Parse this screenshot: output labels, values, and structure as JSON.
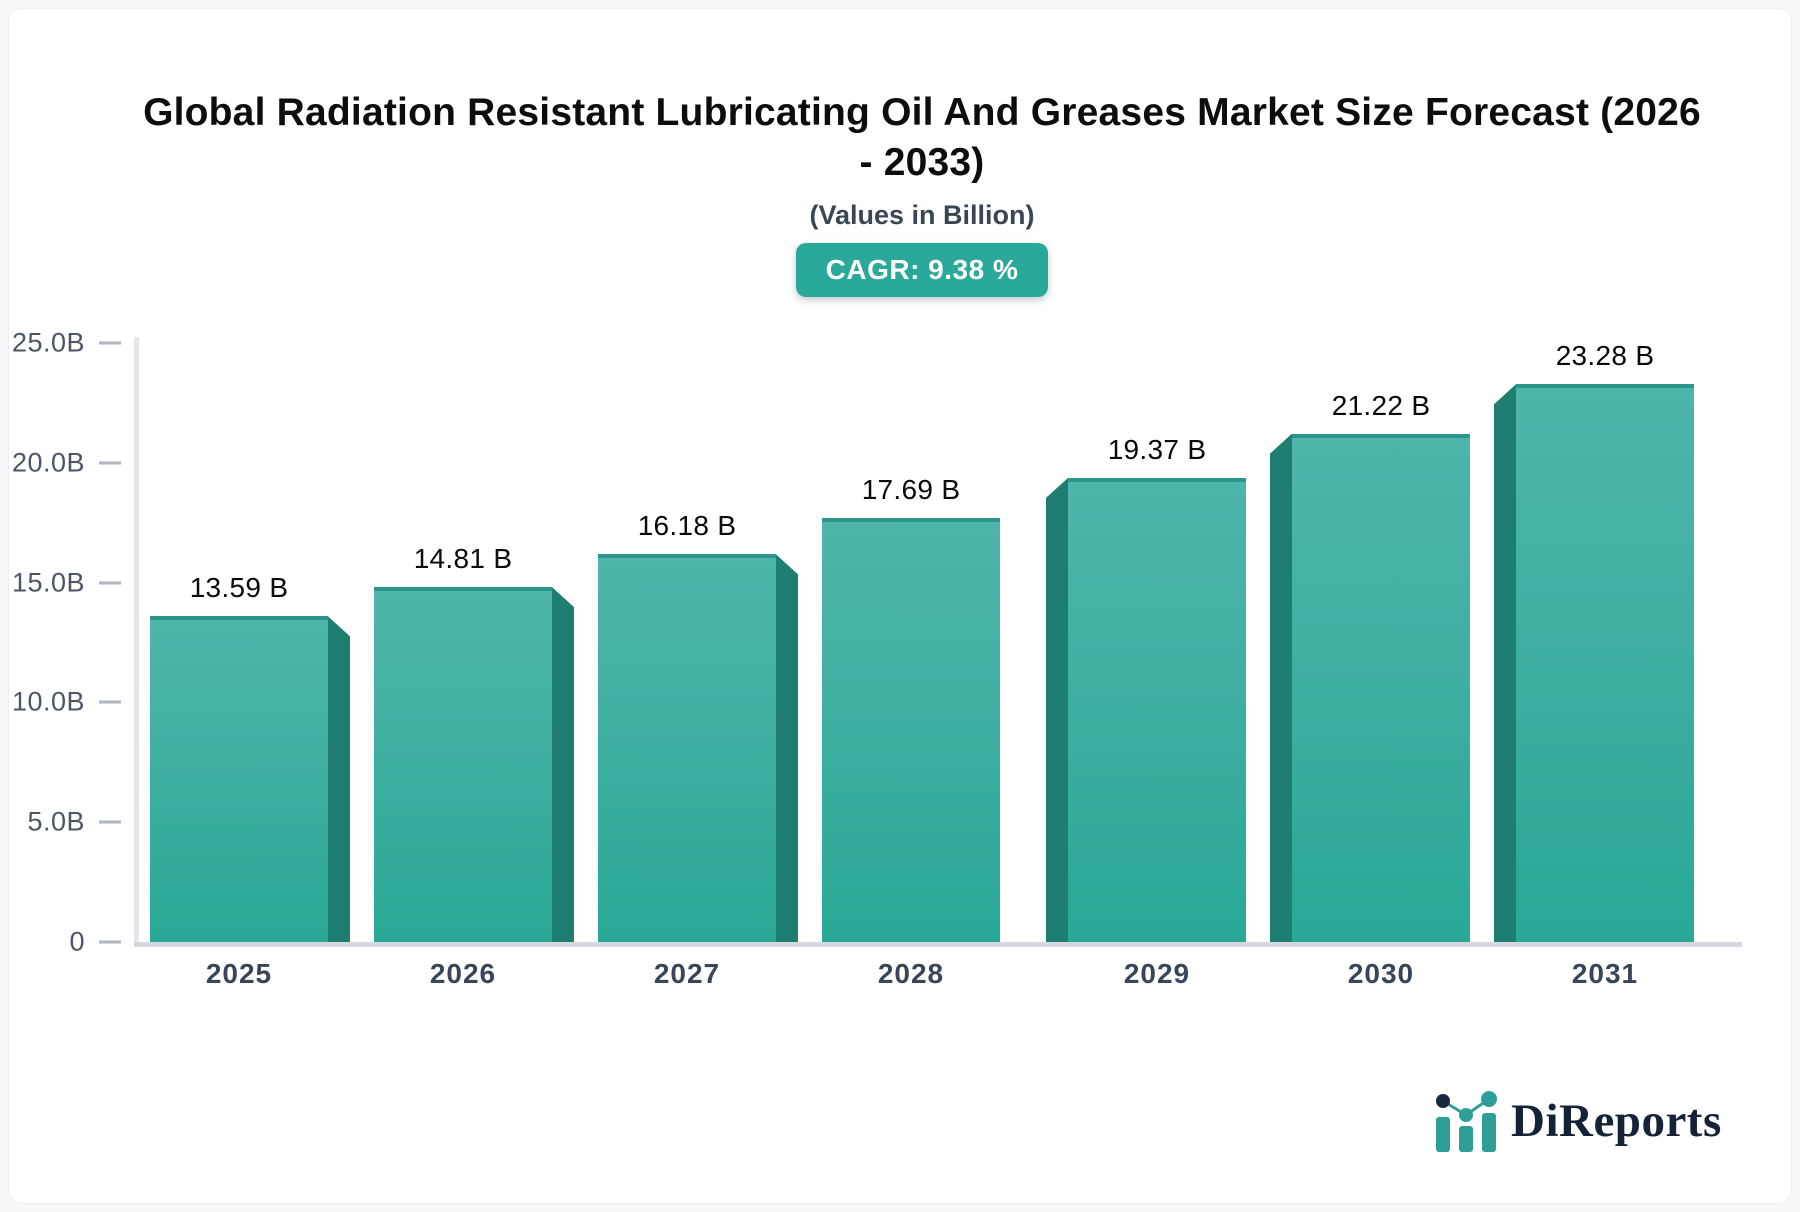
{
  "page": {
    "background": "#f7f8f9",
    "card_background": "#ffffff",
    "accent": "#2aa99b"
  },
  "header": {
    "title_line1": "Global Radiation Resistant Lubricating Oil And Greases Market Size Forecast (2026",
    "title_line2": "- 2033)",
    "subtitle": "(Values in Billion)",
    "cagr_badge": "CAGR: 9.38 %"
  },
  "chart_data": {
    "type": "bar",
    "title": "Global Radiation Resistant Lubricating Oil And Greases Market Size Forecast (2026 - 2033)",
    "subtitle": "(Values in Billion)",
    "cagr_percent": 9.38,
    "categories": [
      "2025",
      "2026",
      "2027",
      "2028",
      "2029",
      "2030",
      "2031"
    ],
    "values": [
      13.59,
      14.81,
      16.18,
      17.69,
      19.37,
      21.22,
      23.28
    ],
    "value_labels": [
      "13.59 B",
      "14.81 B",
      "16.18 B",
      "17.69 B",
      "19.37 B",
      "21.22 B",
      "23.28 B"
    ],
    "y_ticks": [
      "25.0B",
      "20.0B",
      "15.0B",
      "10.0B",
      "5.0B",
      "0"
    ],
    "ylim": [
      0,
      25
    ],
    "unit": "Billion",
    "xlabel": "",
    "ylabel": "",
    "grid": "off",
    "legend": "none",
    "bar_colors": {
      "face_top": "#4fb5ab",
      "face_bottom": "#2aa897",
      "side": "#1e7e71",
      "top_edge": "#2d968c"
    }
  },
  "branding": {
    "logo_text": "DiReports",
    "logo_icon": "mini-bar-chart-icon",
    "logo_text_color": "#152238",
    "logo_icon_color": "#2f9e97",
    "logo_icon_dot_color": "#16283f"
  }
}
